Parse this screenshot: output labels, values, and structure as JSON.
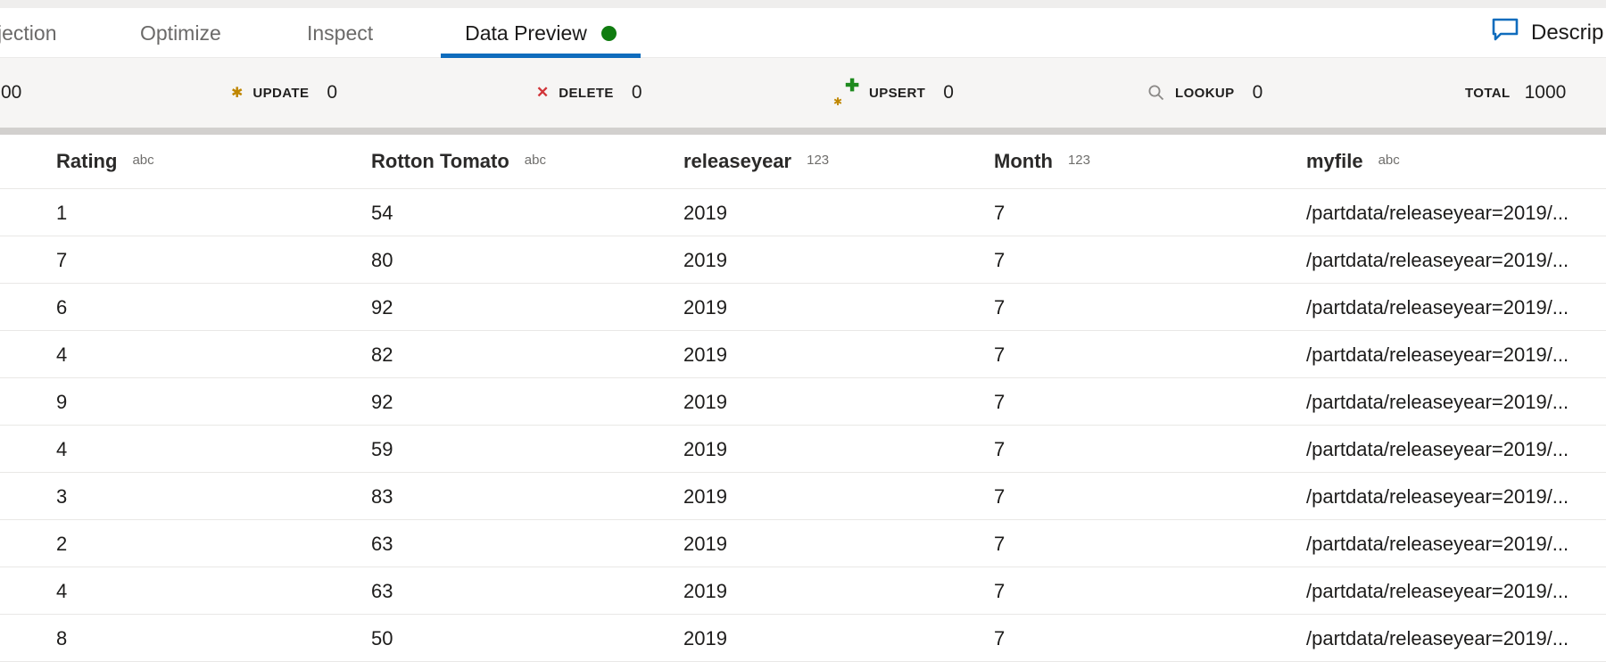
{
  "colors": {
    "accent_blue": "#0f6cbd",
    "status_green": "#107c10",
    "update_gold": "#bf8600",
    "delete_red": "#d13438",
    "upsert_green": "#1e8a1e",
    "lookup_gray": "#8a8886",
    "stats_bg": "#f6f5f4",
    "divider": "#d2d0ce"
  },
  "tabs": {
    "items": [
      {
        "label": "jection",
        "state": "inactive"
      },
      {
        "label": "Optimize",
        "state": "inactive"
      },
      {
        "label": "Inspect",
        "state": "inactive"
      },
      {
        "label": "Data Preview",
        "state": "active",
        "has_status_dot": true
      }
    ],
    "description_button": {
      "label": "Descrip",
      "icon": "comment-icon"
    }
  },
  "stats_bar": {
    "insert_partial_value": "00",
    "stats": [
      {
        "label": "UPDATE",
        "value": "0",
        "icon": "update-asterisk-icon"
      },
      {
        "label": "DELETE",
        "value": "0",
        "icon": "delete-x-icon"
      },
      {
        "label": "UPSERT",
        "value": "0",
        "icon": "upsert-asterisk-plus-icon"
      },
      {
        "label": "LOOKUP",
        "value": "0",
        "icon": "lookup-magnifier-icon"
      }
    ],
    "total": {
      "label": "TOTAL",
      "value": "1000"
    }
  },
  "table": {
    "columns": [
      {
        "name": "Rating",
        "type_badge": "abc"
      },
      {
        "name": "Rotton Tomato",
        "type_badge": "abc"
      },
      {
        "name": "releaseyear",
        "type_badge": "123"
      },
      {
        "name": "Month",
        "type_badge": "123"
      },
      {
        "name": "myfile",
        "type_badge": "abc"
      }
    ],
    "rows": [
      [
        "1",
        "54",
        "2019",
        "7",
        "/partdata/releaseyear=2019/..."
      ],
      [
        "7",
        "80",
        "2019",
        "7",
        "/partdata/releaseyear=2019/..."
      ],
      [
        "6",
        "92",
        "2019",
        "7",
        "/partdata/releaseyear=2019/..."
      ],
      [
        "4",
        "82",
        "2019",
        "7",
        "/partdata/releaseyear=2019/..."
      ],
      [
        "9",
        "92",
        "2019",
        "7",
        "/partdata/releaseyear=2019/..."
      ],
      [
        "4",
        "59",
        "2019",
        "7",
        "/partdata/releaseyear=2019/..."
      ],
      [
        "3",
        "83",
        "2019",
        "7",
        "/partdata/releaseyear=2019/..."
      ],
      [
        "2",
        "63",
        "2019",
        "7",
        "/partdata/releaseyear=2019/..."
      ],
      [
        "4",
        "63",
        "2019",
        "7",
        "/partdata/releaseyear=2019/..."
      ],
      [
        "8",
        "50",
        "2019",
        "7",
        "/partdata/releaseyear=2019/..."
      ]
    ]
  }
}
